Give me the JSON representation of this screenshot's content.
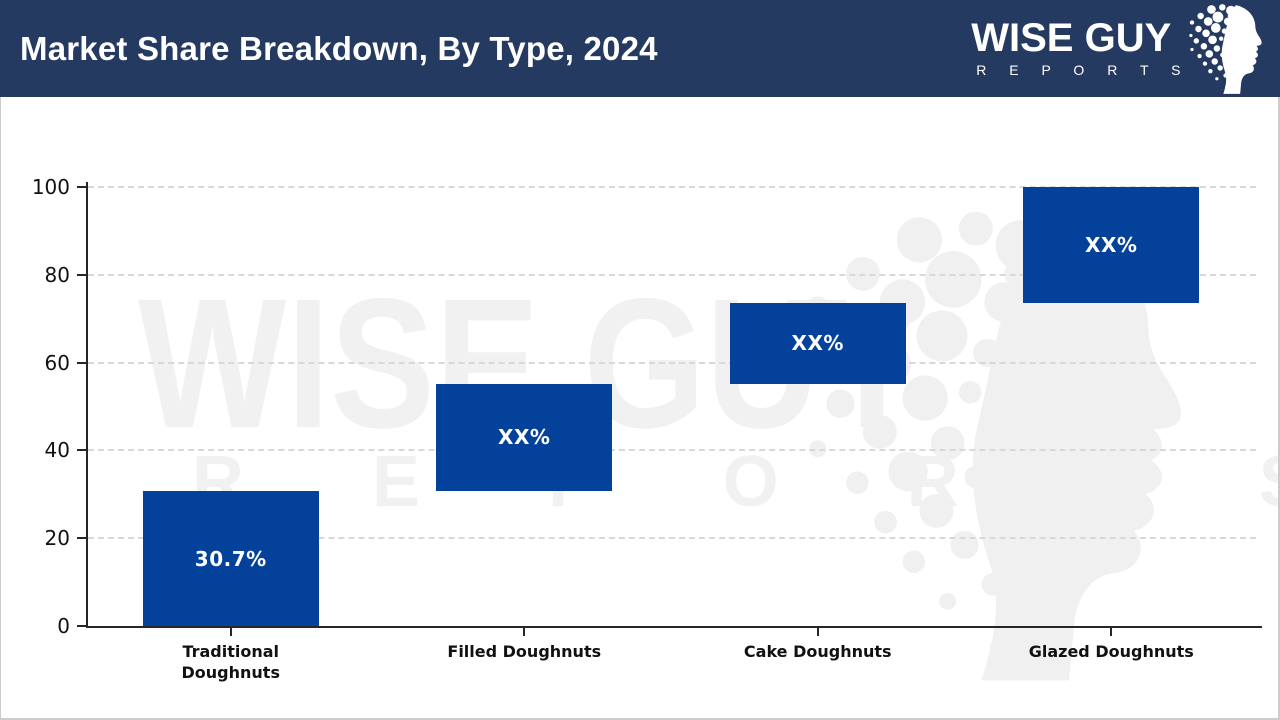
{
  "header": {
    "title": "Market Share Breakdown, By Type, 2024",
    "bg_color": "#253a60",
    "logo": {
      "line1": "WISE GUY",
      "line2": "R E P O R T S",
      "face_icon": "dotted-face-profile-icon"
    }
  },
  "watermark": {
    "line1": "WISE GUY",
    "line2": "R E P O R T S",
    "face_icon": "dotted-face-profile-watermark",
    "color": "#f1f1f1"
  },
  "chart_data": {
    "type": "bar",
    "subtype": "waterfall",
    "title": "Market Share Breakdown, By Type, 2024",
    "categories": [
      "Traditional Doughnuts",
      "Filled Doughnuts",
      "Cake Doughnuts",
      "Glazed Doughnuts"
    ],
    "category_label_lines": [
      [
        "Traditional",
        "Doughnuts"
      ],
      [
        "Filled Doughnuts"
      ],
      [
        "Cake Doughnuts"
      ],
      [
        "Glazed Doughnuts"
      ]
    ],
    "segments": [
      {
        "category": "Traditional Doughnuts",
        "start": 0,
        "end": 30.7,
        "label": "30.7%"
      },
      {
        "category": "Filled Doughnuts",
        "start": 30.7,
        "end": 55.2,
        "label": "XX%"
      },
      {
        "category": "Cake Doughnuts",
        "start": 55.2,
        "end": 73.6,
        "label": "XX%"
      },
      {
        "category": "Glazed Doughnuts",
        "start": 73.6,
        "end": 100,
        "label": "XX%"
      }
    ],
    "xlabel": "",
    "ylabel": "",
    "ylim": [
      0,
      100
    ],
    "yticks": [
      0,
      20,
      40,
      60,
      80,
      100
    ],
    "ytick_labels": [
      "0",
      "20",
      "40",
      "60",
      "80",
      "100"
    ],
    "grid": true,
    "grid_style": "dashed",
    "legend": "none",
    "bar_color": "#04419b",
    "bar_label_color": "#ffffff",
    "axis_color": "#262626",
    "grid_color": "#d8d8d8"
  }
}
